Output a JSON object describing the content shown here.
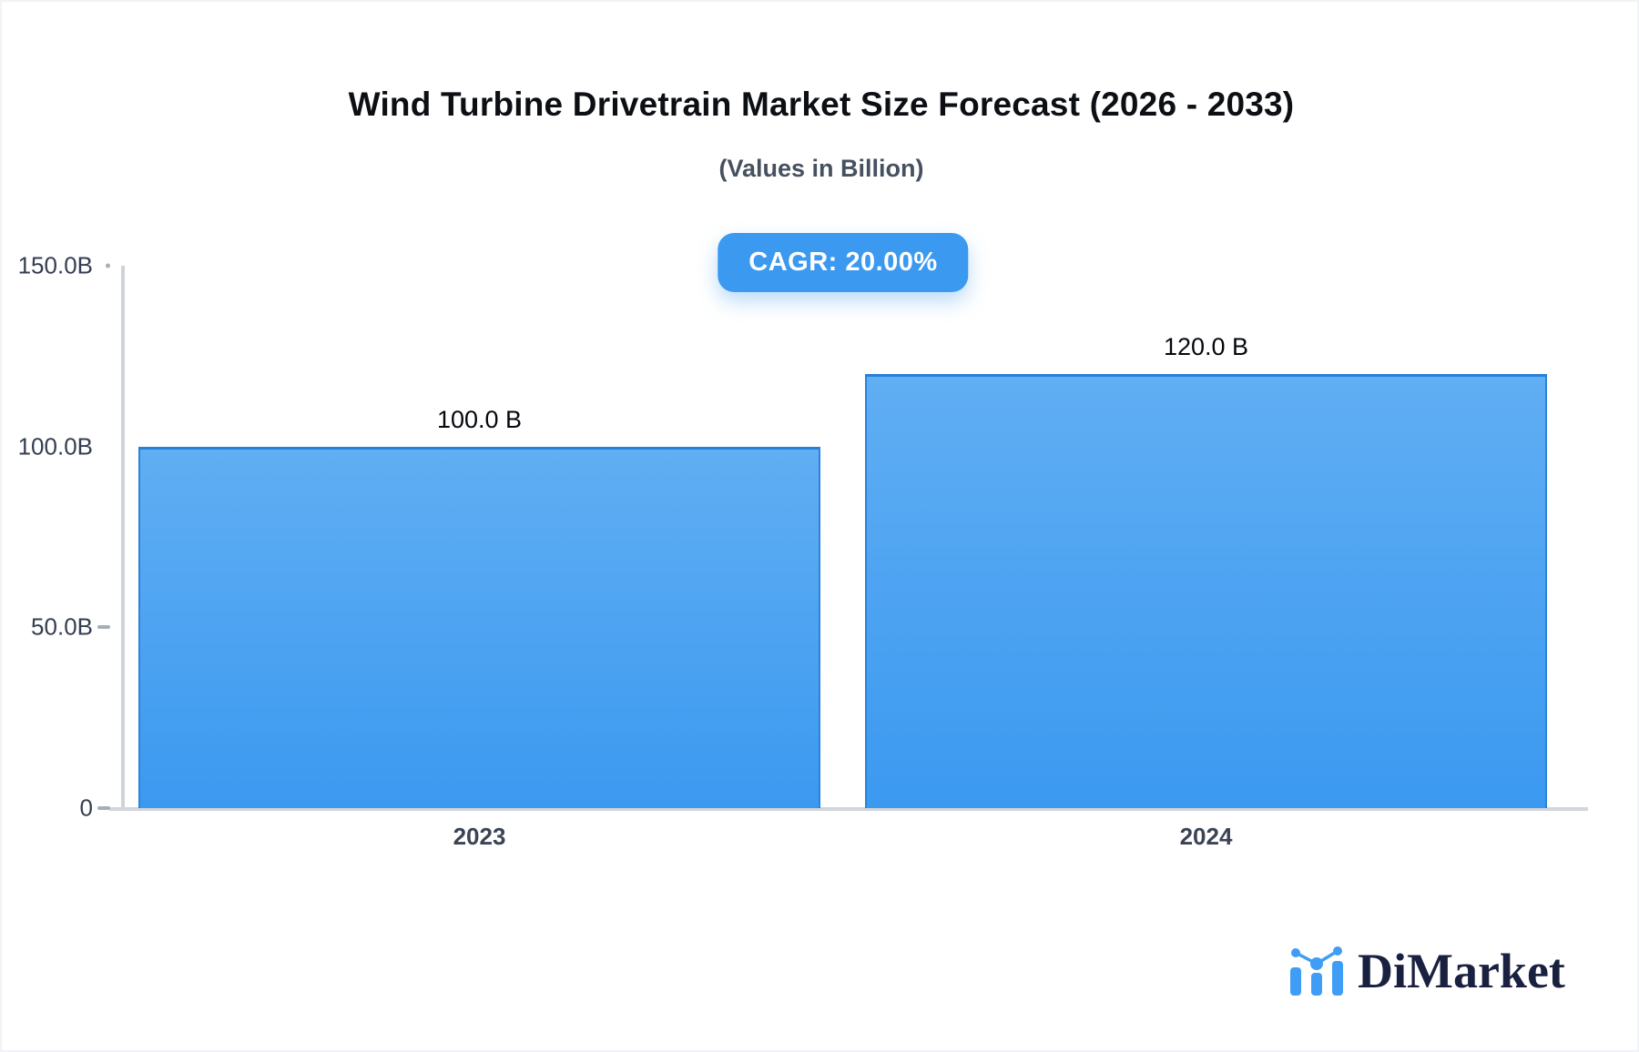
{
  "header": {
    "title": "Wind Turbine Drivetrain Market Size Forecast (2026 - 2033)",
    "subtitle": "(Values in Billion)",
    "cagr_badge": "CAGR: 20.00%"
  },
  "chart_data": {
    "type": "bar",
    "title": "Wind Turbine Drivetrain Market Size Forecast (2026 - 2033)",
    "subtitle": "(Values in Billion)",
    "cagr": "CAGR: 20.00%",
    "categories": [
      "2023",
      "2024"
    ],
    "values": [
      100,
      120
    ],
    "value_labels": [
      "100.0 B",
      "120.0 B"
    ],
    "xlabel": "",
    "ylabel": "",
    "ylim": [
      0,
      150
    ],
    "grid": false,
    "legend": "none",
    "yticks": [
      {
        "label": "150.0B",
        "value": 150,
        "mark": "dot"
      },
      {
        "label": "100.0B",
        "value": 100,
        "mark": "none"
      },
      {
        "label": "50.0B",
        "value": 50,
        "mark": "dash"
      },
      {
        "label": "0",
        "value": 0,
        "mark": "dash"
      }
    ]
  },
  "branding": {
    "logo_text": "DiMarket",
    "logo_icon": "bar-chart-trend-icon"
  },
  "colors": {
    "accent_blue": "#3b99f0",
    "bar_gradient_top": "#60aef3",
    "bar_gradient_bottom": "#3b99f0",
    "bar_border": "#2d83da",
    "axis_gray": "#cfd2db",
    "tick_gray": "#a7adba",
    "label_dark": "#343e50",
    "title_color": "#0c0f14",
    "logo_navy": "#1a2140",
    "logo_blue": "#3f9df5"
  }
}
